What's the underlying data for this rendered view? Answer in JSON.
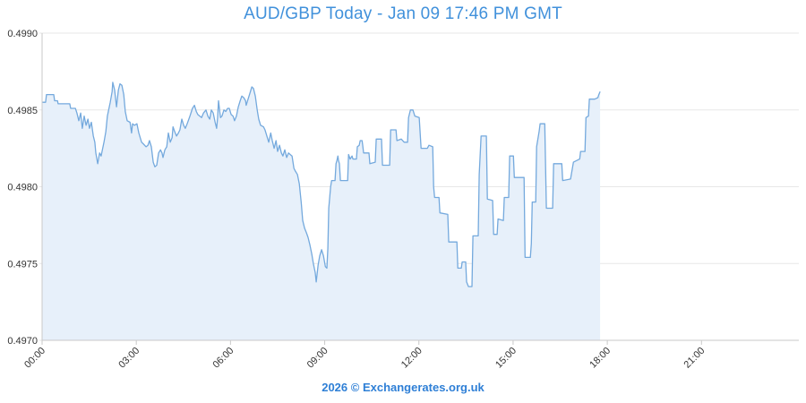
{
  "chart_data": {
    "type": "area",
    "title": "AUD/GBP Today - Jan 09 17:46 PM GMT",
    "xlabel": "",
    "ylabel": "",
    "grid": true,
    "legend": false,
    "x_tick_labels": [
      "00:00",
      "03:00",
      "06:00",
      "09:00",
      "12:00",
      "15:00",
      "18:00",
      "21:00"
    ],
    "x_tick_hours": [
      0,
      3,
      6,
      9,
      12,
      15,
      18,
      21
    ],
    "xlim_hours": [
      0,
      24.1
    ],
    "ylim": [
      0.497,
      0.499
    ],
    "y_ticks": [
      0.499,
      0.4985,
      0.498,
      0.4975,
      0.497
    ],
    "y_tick_labels": [
      "0.4990",
      "0.4985",
      "0.4980",
      "0.4975",
      "0.4970"
    ],
    "colors": {
      "line": "#74a9dd",
      "fill": "#e7f0fa",
      "grid": "#e7e7e7",
      "axis": "#c9c9c9",
      "tick_text": "#333333",
      "title": "#4191db",
      "footer": "#2e7fd6"
    },
    "series": [
      {
        "name": "AUD/GBP",
        "points": [
          [
            0.0,
            0.49855
          ],
          [
            0.11,
            0.49855
          ],
          [
            0.14,
            0.4986
          ],
          [
            0.37,
            0.4986
          ],
          [
            0.4,
            0.49856
          ],
          [
            0.49,
            0.49856
          ],
          [
            0.51,
            0.49854
          ],
          [
            0.88,
            0.49854
          ],
          [
            0.91,
            0.49851
          ],
          [
            1.06,
            0.49851
          ],
          [
            1.11,
            0.49848
          ],
          [
            1.17,
            0.49843
          ],
          [
            1.23,
            0.49848
          ],
          [
            1.28,
            0.49838
          ],
          [
            1.34,
            0.49846
          ],
          [
            1.4,
            0.4984
          ],
          [
            1.46,
            0.49844
          ],
          [
            1.51,
            0.49838
          ],
          [
            1.57,
            0.49842
          ],
          [
            1.63,
            0.49833
          ],
          [
            1.68,
            0.49829
          ],
          [
            1.71,
            0.49822
          ],
          [
            1.77,
            0.49815
          ],
          [
            1.83,
            0.49822
          ],
          [
            1.88,
            0.4982
          ],
          [
            1.97,
            0.49829
          ],
          [
            2.03,
            0.49836
          ],
          [
            2.08,
            0.49846
          ],
          [
            2.17,
            0.49855
          ],
          [
            2.23,
            0.49862
          ],
          [
            2.25,
            0.49868
          ],
          [
            2.31,
            0.49863
          ],
          [
            2.37,
            0.49852
          ],
          [
            2.43,
            0.49863
          ],
          [
            2.48,
            0.49867
          ],
          [
            2.54,
            0.49866
          ],
          [
            2.6,
            0.4986
          ],
          [
            2.65,
            0.49849
          ],
          [
            2.71,
            0.49843
          ],
          [
            2.8,
            0.49842
          ],
          [
            2.85,
            0.49835
          ],
          [
            2.88,
            0.49841
          ],
          [
            2.94,
            0.4984
          ],
          [
            3.02,
            0.49841
          ],
          [
            3.08,
            0.49835
          ],
          [
            3.17,
            0.49829
          ],
          [
            3.22,
            0.49828
          ],
          [
            3.31,
            0.49826
          ],
          [
            3.37,
            0.49827
          ],
          [
            3.42,
            0.4983
          ],
          [
            3.48,
            0.49826
          ],
          [
            3.54,
            0.49816
          ],
          [
            3.59,
            0.49813
          ],
          [
            3.65,
            0.49814
          ],
          [
            3.71,
            0.49822
          ],
          [
            3.77,
            0.49824
          ],
          [
            3.82,
            0.49822
          ],
          [
            3.85,
            0.49819
          ],
          [
            3.91,
            0.49824
          ],
          [
            3.97,
            0.49826
          ],
          [
            4.02,
            0.49835
          ],
          [
            4.08,
            0.49829
          ],
          [
            4.14,
            0.49832
          ],
          [
            4.17,
            0.49839
          ],
          [
            4.22,
            0.49836
          ],
          [
            4.28,
            0.49833
          ],
          [
            4.34,
            0.49835
          ],
          [
            4.39,
            0.49837
          ],
          [
            4.45,
            0.49844
          ],
          [
            4.51,
            0.4984
          ],
          [
            4.56,
            0.49838
          ],
          [
            4.62,
            0.49841
          ],
          [
            4.71,
            0.49846
          ],
          [
            4.79,
            0.49851
          ],
          [
            4.85,
            0.49853
          ],
          [
            4.91,
            0.49849
          ],
          [
            4.96,
            0.49847
          ],
          [
            5.02,
            0.49846
          ],
          [
            5.08,
            0.49845
          ],
          [
            5.14,
            0.49848
          ],
          [
            5.22,
            0.4985
          ],
          [
            5.28,
            0.49846
          ],
          [
            5.34,
            0.49844
          ],
          [
            5.39,
            0.4985
          ],
          [
            5.45,
            0.49848
          ],
          [
            5.51,
            0.49842
          ],
          [
            5.56,
            0.49838
          ],
          [
            5.59,
            0.49845
          ],
          [
            5.62,
            0.49856
          ],
          [
            5.68,
            0.49845
          ],
          [
            5.73,
            0.49846
          ],
          [
            5.79,
            0.4985
          ],
          [
            5.85,
            0.49849
          ],
          [
            5.91,
            0.49851
          ],
          [
            5.96,
            0.49851
          ],
          [
            6.02,
            0.49847
          ],
          [
            6.08,
            0.49846
          ],
          [
            6.13,
            0.49843
          ],
          [
            6.19,
            0.49846
          ],
          [
            6.25,
            0.49852
          ],
          [
            6.31,
            0.49856
          ],
          [
            6.36,
            0.49859
          ],
          [
            6.42,
            0.49858
          ],
          [
            6.48,
            0.49856
          ],
          [
            6.5,
            0.49853
          ],
          [
            6.56,
            0.49857
          ],
          [
            6.62,
            0.49861
          ],
          [
            6.68,
            0.49865
          ],
          [
            6.73,
            0.49864
          ],
          [
            6.79,
            0.49859
          ],
          [
            6.85,
            0.4985
          ],
          [
            6.9,
            0.49844
          ],
          [
            6.96,
            0.4984
          ],
          [
            7.05,
            0.49839
          ],
          [
            7.1,
            0.49837
          ],
          [
            7.16,
            0.49833
          ],
          [
            7.22,
            0.49829
          ],
          [
            7.28,
            0.49835
          ],
          [
            7.33,
            0.4983
          ],
          [
            7.39,
            0.49825
          ],
          [
            7.45,
            0.4983
          ],
          [
            7.5,
            0.49823
          ],
          [
            7.56,
            0.49827
          ],
          [
            7.62,
            0.49822
          ],
          [
            7.67,
            0.4982
          ],
          [
            7.73,
            0.49824
          ],
          [
            7.79,
            0.49819
          ],
          [
            7.85,
            0.49822
          ],
          [
            7.9,
            0.49821
          ],
          [
            7.96,
            0.4982
          ],
          [
            8.02,
            0.49812
          ],
          [
            8.07,
            0.4981
          ],
          [
            8.13,
            0.49808
          ],
          [
            8.19,
            0.49802
          ],
          [
            8.25,
            0.4979
          ],
          [
            8.3,
            0.49778
          ],
          [
            8.36,
            0.49773
          ],
          [
            8.42,
            0.4977
          ],
          [
            8.47,
            0.49767
          ],
          [
            8.53,
            0.49762
          ],
          [
            8.59,
            0.49756
          ],
          [
            8.64,
            0.4975
          ],
          [
            8.7,
            0.49744
          ],
          [
            8.73,
            0.49738
          ],
          [
            8.79,
            0.49749
          ],
          [
            8.84,
            0.49755
          ],
          [
            8.9,
            0.49759
          ],
          [
            8.96,
            0.49755
          ],
          [
            9.02,
            0.49748
          ],
          [
            9.07,
            0.49747
          ],
          [
            9.1,
            0.4976
          ],
          [
            9.13,
            0.49786
          ],
          [
            9.19,
            0.498
          ],
          [
            9.22,
            0.49804
          ],
          [
            9.33,
            0.49804
          ],
          [
            9.36,
            0.49815
          ],
          [
            9.39,
            0.49817
          ],
          [
            9.42,
            0.4982
          ],
          [
            9.44,
            0.49817
          ],
          [
            9.47,
            0.49815
          ],
          [
            9.5,
            0.49804
          ],
          [
            9.73,
            0.49804
          ],
          [
            9.76,
            0.49821
          ],
          [
            9.81,
            0.49818
          ],
          [
            9.87,
            0.4982
          ],
          [
            9.9,
            0.49818
          ],
          [
            10.01,
            0.49818
          ],
          [
            10.04,
            0.49826
          ],
          [
            10.1,
            0.49827
          ],
          [
            10.13,
            0.4983
          ],
          [
            10.19,
            0.4983
          ],
          [
            10.21,
            0.49827
          ],
          [
            10.24,
            0.49822
          ],
          [
            10.41,
            0.49822
          ],
          [
            10.44,
            0.49815
          ],
          [
            10.61,
            0.49816
          ],
          [
            10.64,
            0.49831
          ],
          [
            10.81,
            0.49831
          ],
          [
            10.84,
            0.49814
          ],
          [
            11.07,
            0.49814
          ],
          [
            11.1,
            0.49837
          ],
          [
            11.27,
            0.49837
          ],
          [
            11.3,
            0.4983
          ],
          [
            11.44,
            0.49831
          ],
          [
            11.53,
            0.49829
          ],
          [
            11.64,
            0.49829
          ],
          [
            11.67,
            0.49845
          ],
          [
            11.73,
            0.4985
          ],
          [
            11.81,
            0.4985
          ],
          [
            11.87,
            0.49846
          ],
          [
            12.01,
            0.49845
          ],
          [
            12.07,
            0.49825
          ],
          [
            12.27,
            0.49825
          ],
          [
            12.32,
            0.49827
          ],
          [
            12.44,
            0.49826
          ],
          [
            12.47,
            0.498
          ],
          [
            12.5,
            0.49793
          ],
          [
            12.64,
            0.49793
          ],
          [
            12.67,
            0.49783
          ],
          [
            12.92,
            0.49782
          ],
          [
            12.95,
            0.49764
          ],
          [
            13.21,
            0.49764
          ],
          [
            13.24,
            0.49747
          ],
          [
            13.35,
            0.49747
          ],
          [
            13.38,
            0.49751
          ],
          [
            13.49,
            0.49751
          ],
          [
            13.52,
            0.49738
          ],
          [
            13.58,
            0.49735
          ],
          [
            13.69,
            0.49735
          ],
          [
            13.72,
            0.49768
          ],
          [
            13.89,
            0.49768
          ],
          [
            13.92,
            0.49808
          ],
          [
            13.98,
            0.49833
          ],
          [
            14.15,
            0.49833
          ],
          [
            14.18,
            0.49792
          ],
          [
            14.35,
            0.49791
          ],
          [
            14.38,
            0.49769
          ],
          [
            14.49,
            0.49769
          ],
          [
            14.52,
            0.49779
          ],
          [
            14.69,
            0.49778
          ],
          [
            14.72,
            0.49793
          ],
          [
            14.86,
            0.49793
          ],
          [
            14.89,
            0.4982
          ],
          [
            15.01,
            0.4982
          ],
          [
            15.04,
            0.49806
          ],
          [
            15.35,
            0.49806
          ],
          [
            15.38,
            0.49754
          ],
          [
            15.55,
            0.49754
          ],
          [
            15.58,
            0.49763
          ],
          [
            15.61,
            0.4979
          ],
          [
            15.72,
            0.4979
          ],
          [
            15.75,
            0.49826
          ],
          [
            15.83,
            0.49836
          ],
          [
            15.86,
            0.49841
          ],
          [
            16.01,
            0.49841
          ],
          [
            16.06,
            0.49786
          ],
          [
            16.26,
            0.49786
          ],
          [
            16.29,
            0.49815
          ],
          [
            16.55,
            0.49815
          ],
          [
            16.58,
            0.49804
          ],
          [
            16.83,
            0.49805
          ],
          [
            16.92,
            0.49816
          ],
          [
            17.12,
            0.49818
          ],
          [
            17.15,
            0.49823
          ],
          [
            17.29,
            0.49823
          ],
          [
            17.32,
            0.49845
          ],
          [
            17.4,
            0.49846
          ],
          [
            17.43,
            0.49857
          ],
          [
            17.6,
            0.49857
          ],
          [
            17.7,
            0.49858
          ],
          [
            17.73,
            0.4986
          ],
          [
            17.77,
            0.49862
          ]
        ]
      }
    ]
  },
  "footer": {
    "copyright": "2026 © Exchangerates.org.uk"
  }
}
